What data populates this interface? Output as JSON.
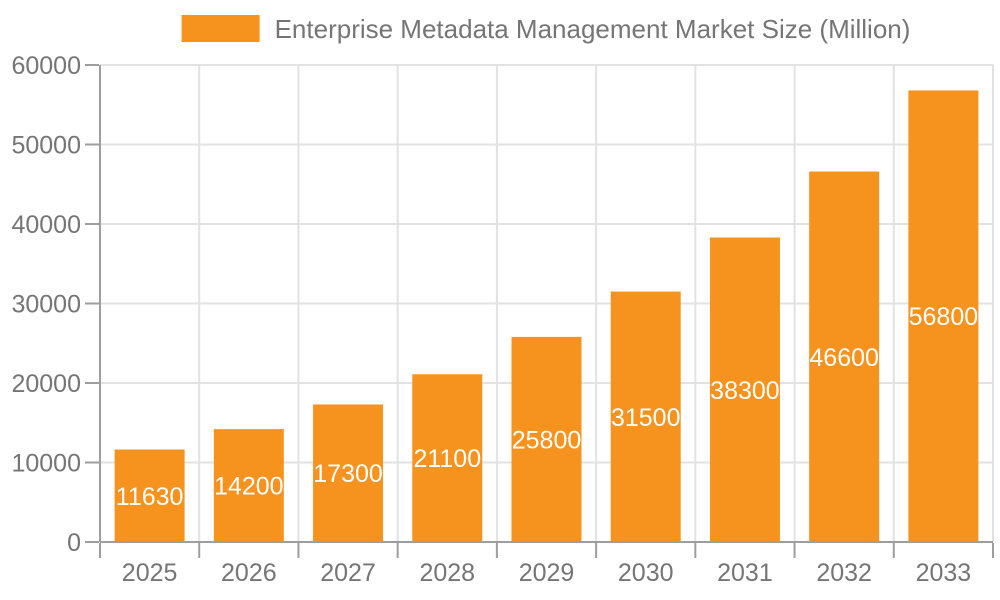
{
  "chart_data": {
    "type": "bar",
    "title": "Enterprise Metadata Management Market Size (Million)",
    "legend": {
      "label": "Enterprise Metadata Management Market Size (Million)",
      "position": "top-center"
    },
    "categories": [
      "2025",
      "2026",
      "2027",
      "2028",
      "2029",
      "2030",
      "2031",
      "2032",
      "2033"
    ],
    "series": [
      {
        "name": "Enterprise Metadata Management Market Size (Million)",
        "values": [
          11630,
          14200,
          17300,
          21100,
          25800,
          31500,
          38300,
          46600,
          56800
        ]
      }
    ],
    "bar_value_labels": [
      "11630",
      "14200",
      "17300",
      "21100",
      "25800",
      "31500",
      "38300",
      "46600",
      "56800"
    ],
    "xlabel": "",
    "ylabel": "",
    "ylim": [
      0,
      60000
    ],
    "yticks": [
      0,
      10000,
      20000,
      30000,
      40000,
      50000,
      60000
    ],
    "grid": "horizontal-and-vertical",
    "colors": {
      "bar": "#F6931E",
      "bar_label_text": "#FFFFFF",
      "axis": "#9E9E9E",
      "gridline": "#E2E2E2",
      "tick_text": "#757575",
      "title_text": "#757575",
      "background": "#FFFFFF"
    }
  }
}
